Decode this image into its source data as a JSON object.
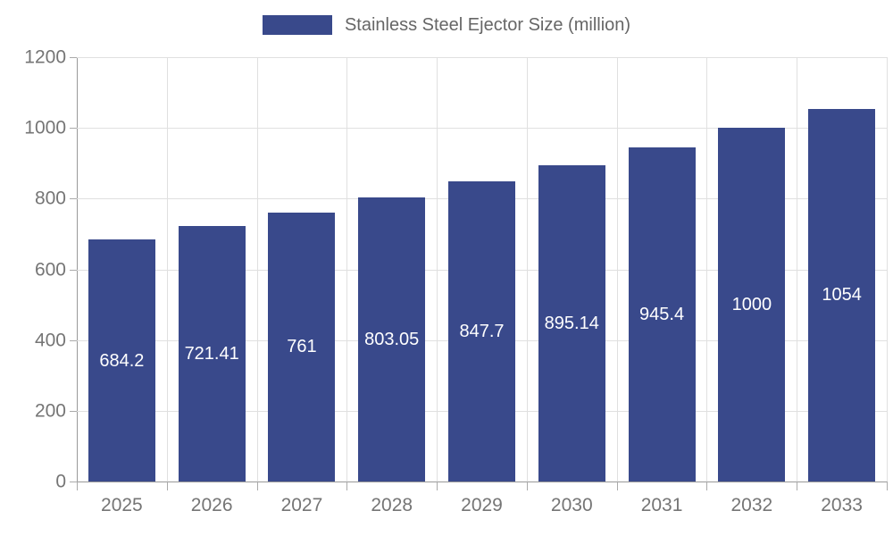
{
  "legend": {
    "series_label": "Stainless Steel Ejector Size (million)"
  },
  "chart_data": {
    "type": "bar",
    "title": "",
    "xlabel": "",
    "ylabel": "",
    "categories": [
      "2025",
      "2026",
      "2027",
      "2028",
      "2029",
      "2030",
      "2031",
      "2032",
      "2033"
    ],
    "series": [
      {
        "name": "Stainless Steel Ejector Size (million)",
        "values": [
          684.2,
          721.41,
          761,
          803.05,
          847.7,
          895.14,
          945.4,
          1000,
          1054
        ],
        "value_labels": [
          "684.2",
          "721.41",
          "761",
          "803.05",
          "847.7",
          "895.14",
          "945.4",
          "1000",
          "1054"
        ]
      }
    ],
    "ylim": [
      0,
      1200
    ],
    "yticks": [
      0,
      200,
      400,
      600,
      800,
      1000,
      1200
    ],
    "grid": "horizontal-and-vertical",
    "legend_position": "top-center",
    "bar_value_label_position": "inside-middle",
    "colors": {
      "bar": "#39498B",
      "bar_value_label": "#FFFFFF",
      "axis_line": "#999999",
      "tick_mark": "#AAAAAA",
      "grid_line": "#E0E0E0",
      "axis_tick_label": "#757575",
      "legend_text": "#666666"
    }
  }
}
